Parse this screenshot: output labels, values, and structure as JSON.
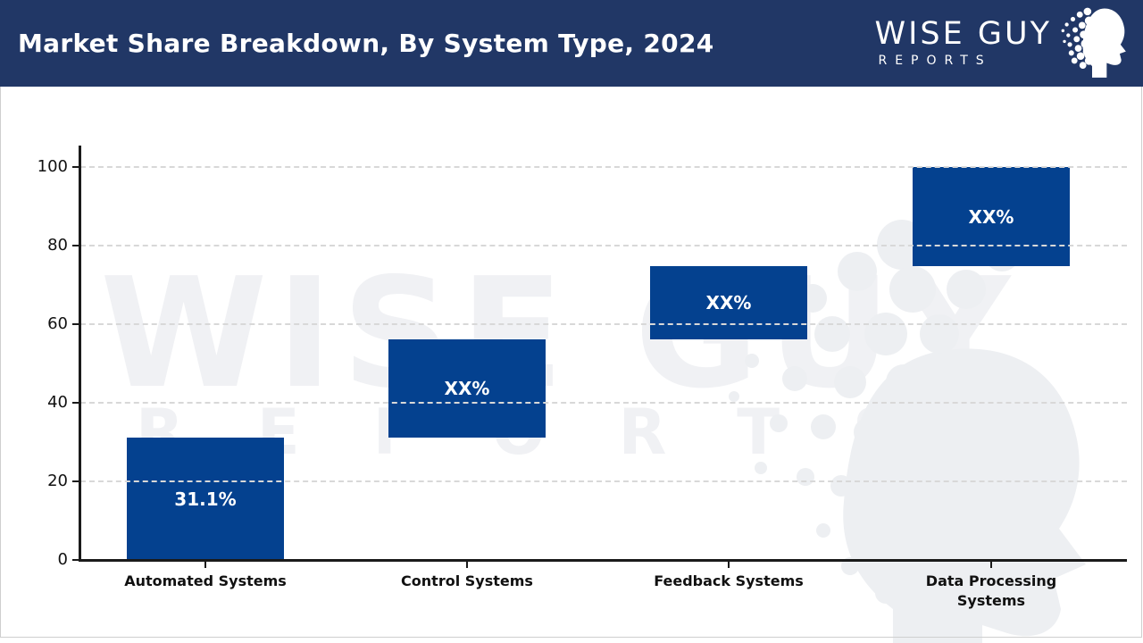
{
  "header": {
    "title": "Market Share Breakdown, By System Type, 2024",
    "logo": {
      "brand": "WISE GUY",
      "sub": "REPORTS"
    }
  },
  "watermark": {
    "brand": "WISE GUY",
    "sub": "REPORTS"
  },
  "colors": {
    "header_bg": "#213766",
    "bar": "#04418f",
    "gridline": "#d8d8d8",
    "axis": "#1a1a1a",
    "watermark": "#f0f1f4"
  },
  "chart_data": {
    "type": "bar",
    "subtype": "waterfall",
    "title": "Market Share Breakdown, By System Type, 2024",
    "categories": [
      "Automated Systems",
      "Control Systems",
      "Feedback Systems",
      "Data Processing\nSystems"
    ],
    "segments": [
      {
        "category": "Automated Systems",
        "start": 0,
        "end": 31.1,
        "label": "31.1%"
      },
      {
        "category": "Control Systems",
        "start": 31.1,
        "end": 56.1,
        "label": "XX%"
      },
      {
        "category": "Feedback Systems",
        "start": 56.1,
        "end": 74.7,
        "label": "XX%"
      },
      {
        "category": "Data Processing Systems",
        "start": 74.7,
        "end": 100,
        "label": "XX%"
      }
    ],
    "yticks": [
      0,
      20,
      40,
      60,
      80,
      100
    ],
    "ylim": [
      0,
      105.5
    ],
    "xlabel": "",
    "ylabel": "",
    "grid": "horizontal-dashed",
    "grid_above_bars": true,
    "legend": null,
    "bar_color": "#04418f",
    "value_label_color": "#ffffff"
  }
}
